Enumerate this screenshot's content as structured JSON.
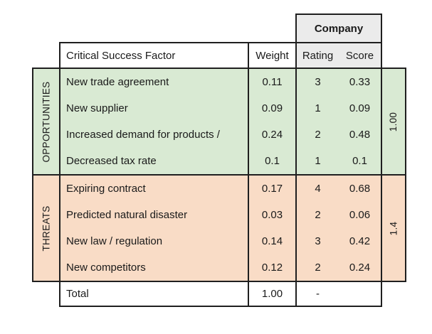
{
  "chart_data": {
    "type": "table",
    "group_header": "Company",
    "columns": [
      "Critical Success Factor",
      "Weight",
      "Rating",
      "Score"
    ],
    "sections": [
      {
        "label": "OPPORTUNITIES",
        "score_sum": "1.00",
        "rows": [
          {
            "factor": "New trade agreement",
            "weight": "0.11",
            "rating": "3",
            "score": "0.33"
          },
          {
            "factor": "New supplier",
            "weight": "0.09",
            "rating": "1",
            "score": "0.09"
          },
          {
            "factor": "Increased demand for products /",
            "weight": "0.24",
            "rating": "2",
            "score": "0.48"
          },
          {
            "factor": "Decreased tax rate",
            "weight": "0.1",
            "rating": "1",
            "score": "0.1"
          }
        ]
      },
      {
        "label": "THREATS",
        "score_sum": "1.4",
        "rows": [
          {
            "factor": "Expiring contract",
            "weight": "0.17",
            "rating": "4",
            "score": "0.68"
          },
          {
            "factor": "Predicted natural disaster",
            "weight": "0.03",
            "rating": "2",
            "score": "0.06"
          },
          {
            "factor": "New law / regulation",
            "weight": "0.14",
            "rating": "3",
            "score": "0.42"
          },
          {
            "factor": "New competitors",
            "weight": "0.12",
            "rating": "2",
            "score": "0.24"
          }
        ]
      }
    ],
    "total": {
      "label": "Total",
      "weight": "1.00",
      "rating_score": "-"
    }
  },
  "colors": {
    "opportunities_bg": "#d9ead3",
    "threats_bg": "#f9dcc6",
    "header_bg": "#ebebeb",
    "border": "#1f1f1f",
    "text": "#1a1a1a"
  }
}
